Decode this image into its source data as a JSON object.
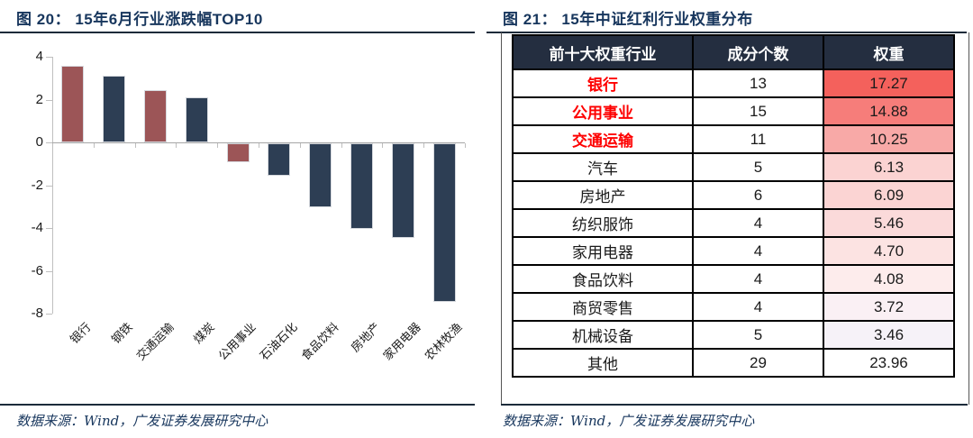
{
  "left_panel": {
    "title": "图 20： 15年6月行业涨跌幅TOP10",
    "source": "数据来源：Wind，广发证券发展研究中心"
  },
  "right_panel": {
    "title": "图 21： 15年中证红利行业权重分布",
    "source": "数据来源：Wind，广发证券发展研究中心",
    "table": {
      "headers": [
        "前十大权重行业",
        "成分个数",
        "权重"
      ],
      "header_bg": "#242e40",
      "highlight_text_color": "#fe0000",
      "rows": [
        {
          "industry": "银行",
          "count": "13",
          "weight": "17.27",
          "highlight": true,
          "weight_bg": "#f4615c"
        },
        {
          "industry": "公用事业",
          "count": "15",
          "weight": "14.88",
          "highlight": true,
          "weight_bg": "#f67d7a"
        },
        {
          "industry": "交通运输",
          "count": "11",
          "weight": "10.25",
          "highlight": true,
          "weight_bg": "#f8a9a7"
        },
        {
          "industry": "汽车",
          "count": "5",
          "weight": "6.13",
          "highlight": false,
          "weight_bg": "#fbd3d2"
        },
        {
          "industry": "房地产",
          "count": "6",
          "weight": "6.09",
          "highlight": false,
          "weight_bg": "#fbd4d3"
        },
        {
          "industry": "纺织服饰",
          "count": "4",
          "weight": "5.46",
          "highlight": false,
          "weight_bg": "#fbdada"
        },
        {
          "industry": "家用电器",
          "count": "4",
          "weight": "4.70",
          "highlight": false,
          "weight_bg": "#fce3e2"
        },
        {
          "industry": "食品饮料",
          "count": "4",
          "weight": "4.08",
          "highlight": false,
          "weight_bg": "#fdecec"
        },
        {
          "industry": "商贸零售",
          "count": "4",
          "weight": "3.72",
          "highlight": false,
          "weight_bg": "#faf0f4"
        },
        {
          "industry": "机械设备",
          "count": "5",
          "weight": "3.46",
          "highlight": false,
          "weight_bg": "#f6f2f8"
        },
        {
          "industry": "其他",
          "count": "29",
          "weight": "23.96",
          "highlight": false,
          "weight_bg": "#ffffff"
        }
      ]
    }
  },
  "chart_data": [
    {
      "type": "bar",
      "title": "15年6月行业涨跌幅TOP10",
      "categories": [
        "银行",
        "钢铁",
        "交通运输",
        "煤炭",
        "公用事业",
        "石油石化",
        "食品饮料",
        "房地产",
        "家用电器",
        "农林牧渔"
      ],
      "values": [
        3.6,
        3.1,
        2.45,
        2.1,
        -0.9,
        -1.5,
        -3.0,
        -4.0,
        -4.4,
        -7.4
      ],
      "bar_colors": [
        "#9c5557",
        "#2d3e54",
        "#9c5557",
        "#2d3e54",
        "#9c5557",
        "#2d3e54",
        "#2d3e54",
        "#2d3e54",
        "#2d3e54",
        "#2d3e54"
      ],
      "xlabel": "",
      "ylabel": "",
      "ylim": [
        -8,
        4
      ],
      "yticks": [
        4,
        2,
        0,
        -2,
        -4,
        -6,
        -8
      ],
      "grid": false,
      "legend_position": "none"
    },
    {
      "type": "table",
      "title": "15年中证红利行业权重分布",
      "columns": [
        "前十大权重行业",
        "成分个数",
        "权重"
      ],
      "rows": [
        [
          "银行",
          13,
          17.27
        ],
        [
          "公用事业",
          15,
          14.88
        ],
        [
          "交通运输",
          11,
          10.25
        ],
        [
          "汽车",
          5,
          6.13
        ],
        [
          "房地产",
          6,
          6.09
        ],
        [
          "纺织服饰",
          4,
          5.46
        ],
        [
          "家用电器",
          4,
          4.7
        ],
        [
          "食品饮料",
          4,
          4.08
        ],
        [
          "商贸零售",
          4,
          3.72
        ],
        [
          "机械设备",
          5,
          3.46
        ],
        [
          "其他",
          29,
          23.96
        ]
      ]
    }
  ],
  "colors": {
    "title_navy": "#17365d",
    "rule": "#1c2b3a",
    "axis_gray": "#bfbfbf",
    "bar_navy": "#2d3e54",
    "bar_maroon": "#9c5557"
  }
}
